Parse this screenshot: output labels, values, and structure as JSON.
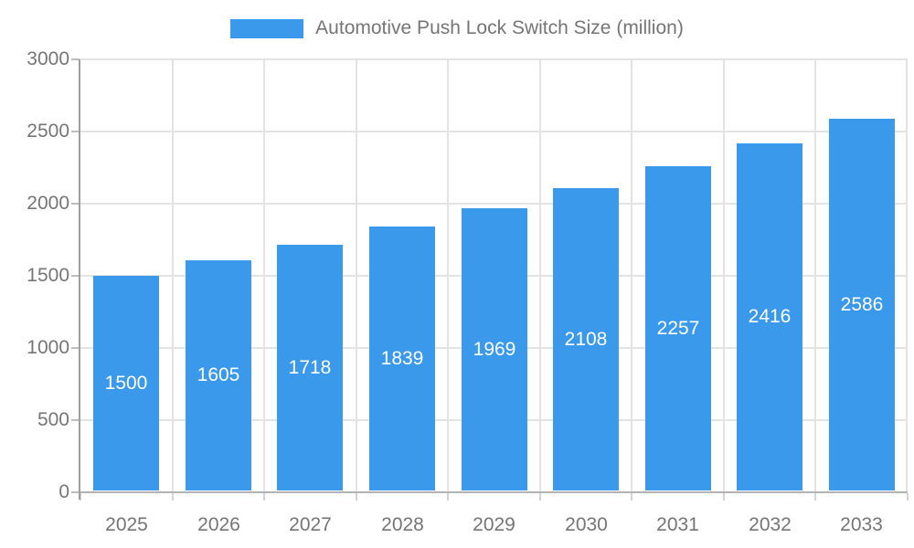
{
  "chart_data": {
    "type": "bar",
    "title": "Automotive Push Lock Switch Size (million)",
    "categories": [
      "2025",
      "2026",
      "2027",
      "2028",
      "2029",
      "2030",
      "2031",
      "2032",
      "2033"
    ],
    "values": [
      1500,
      1605,
      1718,
      1839,
      1969,
      2108,
      2257,
      2416,
      2586
    ],
    "value_labels": [
      "1500",
      "1605",
      "1718",
      "1839",
      "1969",
      "2108",
      "2257",
      "2416",
      "2586"
    ],
    "yticks": [
      0,
      500,
      1000,
      1500,
      2000,
      2500,
      3000
    ],
    "ylim": [
      0,
      3000
    ],
    "xlabel": "",
    "ylabel": "",
    "grid": true,
    "legend_position": "top-center",
    "value_labels_inside_bars": true,
    "colors": {
      "bar": "#3B99EC",
      "bar_value_text": "#FFFFFF",
      "axis_text": "#757575",
      "gridline": "#E3E3E3",
      "axis_line": "#9E9E9E",
      "baseline": "#B3B3B3",
      "background": "#FFFFFF"
    }
  }
}
